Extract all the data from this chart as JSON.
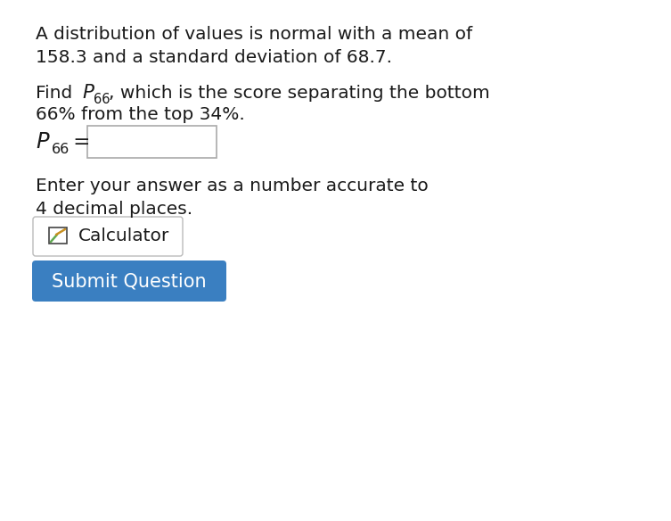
{
  "bg_color": "#ffffff",
  "text_color": "#1a1a1a",
  "line1": "A distribution of values is normal with a mean of",
  "line2": "158.3 and a standard deviation of 68.7.",
  "line3_find": "Find ",
  "line3_post": ", which is the score separating the bottom",
  "line4": "66% from the top 34%.",
  "line5": "Enter your answer as a number accurate to",
  "line6": "4 decimal places.",
  "calc_label": "Calculator",
  "submit_label": "Submit Question",
  "submit_btn_color": "#3a7fc1",
  "submit_text_color": "#ffffff",
  "calc_icon_color_orange": "#c8a020",
  "calc_icon_color_green": "#6aaa60",
  "main_font_size": 14.5,
  "sub_font_size": 9.5
}
